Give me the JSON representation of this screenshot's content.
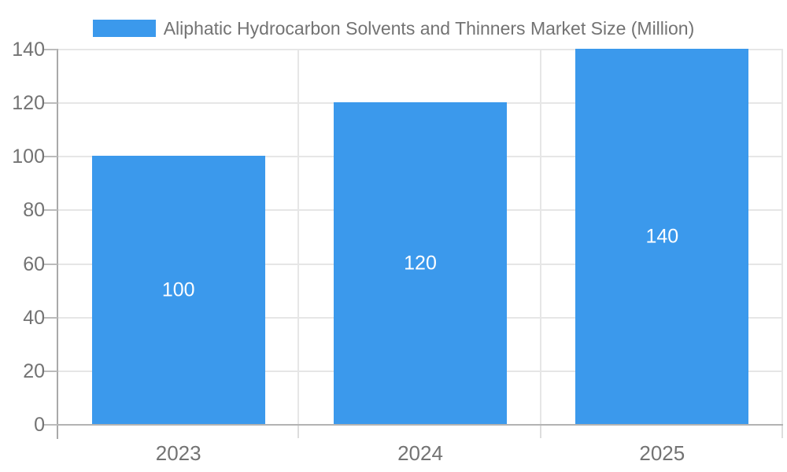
{
  "legend": {
    "label": "Aliphatic Hydrocarbon Solvents and Thinners Market Size (Million)"
  },
  "chart_data": {
    "type": "bar",
    "title": "Aliphatic Hydrocarbon Solvents and Thinners Market Size (Million)",
    "categories": [
      "2023",
      "2024",
      "2025"
    ],
    "values": [
      100,
      120,
      140
    ],
    "data_labels": [
      "100",
      "120",
      "140"
    ],
    "xlabel": "",
    "ylabel": "",
    "ylim": [
      0,
      140
    ],
    "yticks": [
      0,
      20,
      40,
      60,
      80,
      100,
      120,
      140
    ],
    "grid": true,
    "legend_position": "top",
    "colors": {
      "bar": "#3B99EC",
      "gridline": "#E6E6E6",
      "y_axis_line": "#A9A9A9",
      "x_axis_line": "#B3B3B3",
      "y_tick": "#BBBBBB",
      "category_tick": "#DDDDDD",
      "axis_text": "#737373",
      "data_label": "#FFFFFF",
      "background": "#FFFFFF"
    }
  }
}
